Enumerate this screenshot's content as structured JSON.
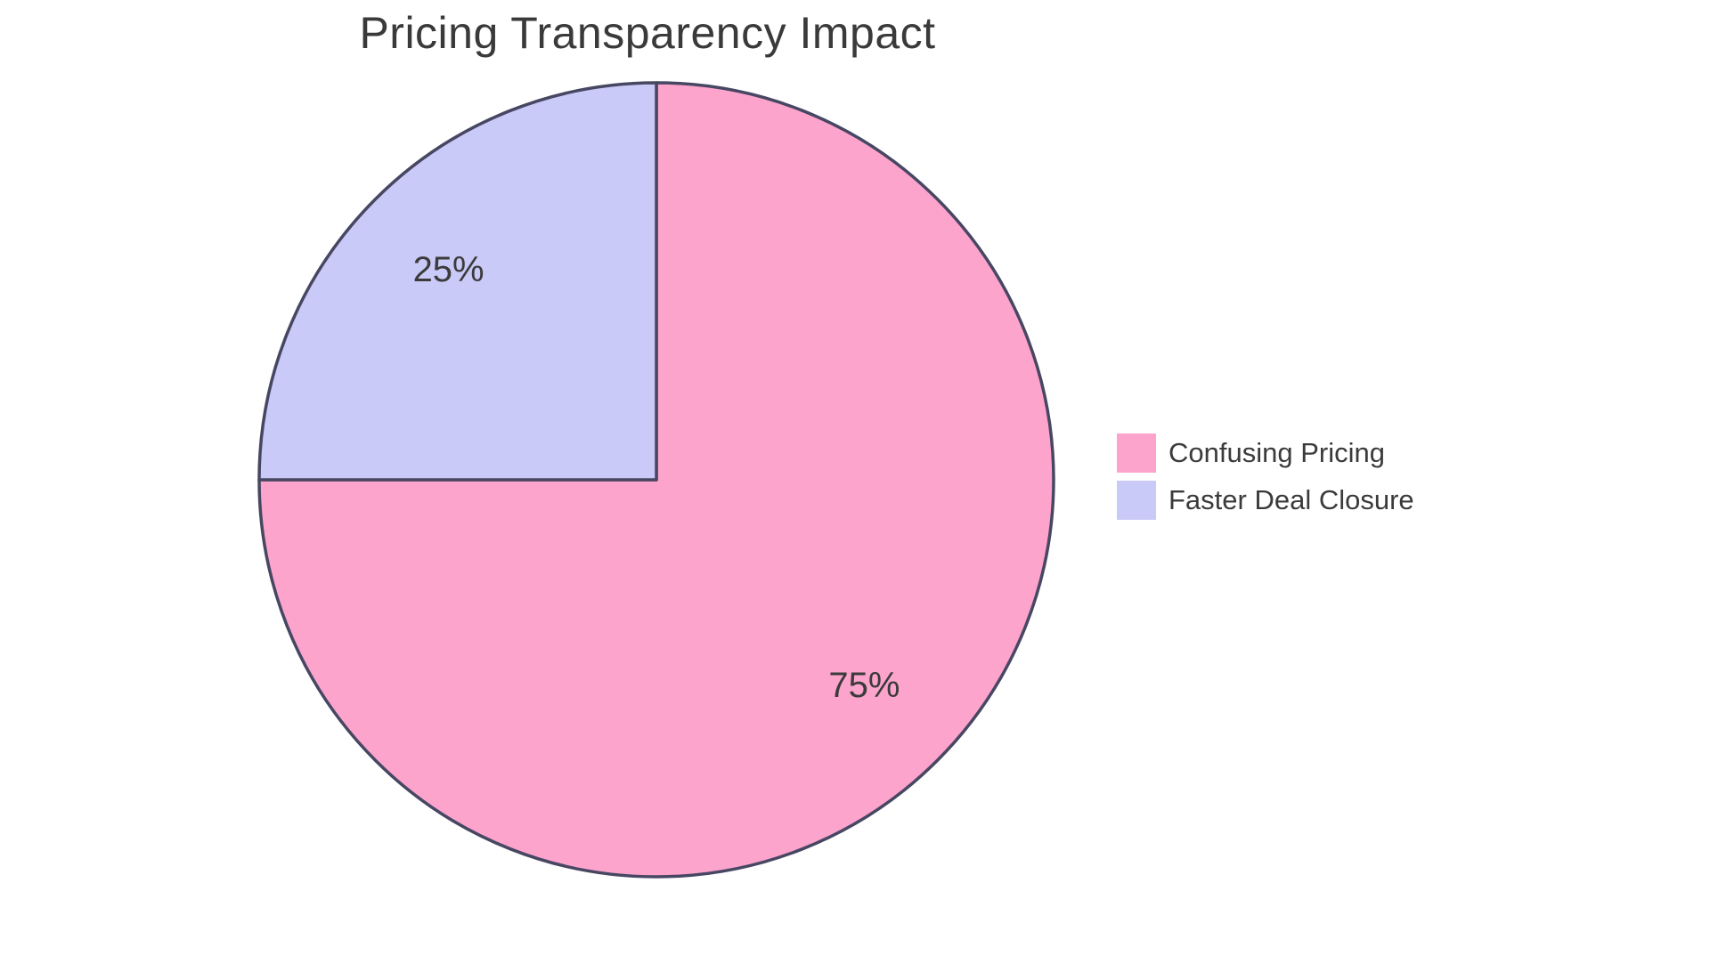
{
  "chart_data": {
    "type": "pie",
    "title": "Pricing Transparency Impact",
    "start_angle_deg": 90,
    "direction": "clockwise",
    "legend_position": "right",
    "grid": false,
    "stroke_color": "#474763",
    "text_color": "#3b3b3b",
    "background_color": "#ffffff",
    "slices": [
      {
        "label": "Confusing Pricing",
        "value": 75,
        "percent_label": "75%",
        "color": "#FDA4CC"
      },
      {
        "label": "Faster Deal Closure",
        "value": 25,
        "percent_label": "25%",
        "color": "#CACAF8"
      }
    ]
  }
}
